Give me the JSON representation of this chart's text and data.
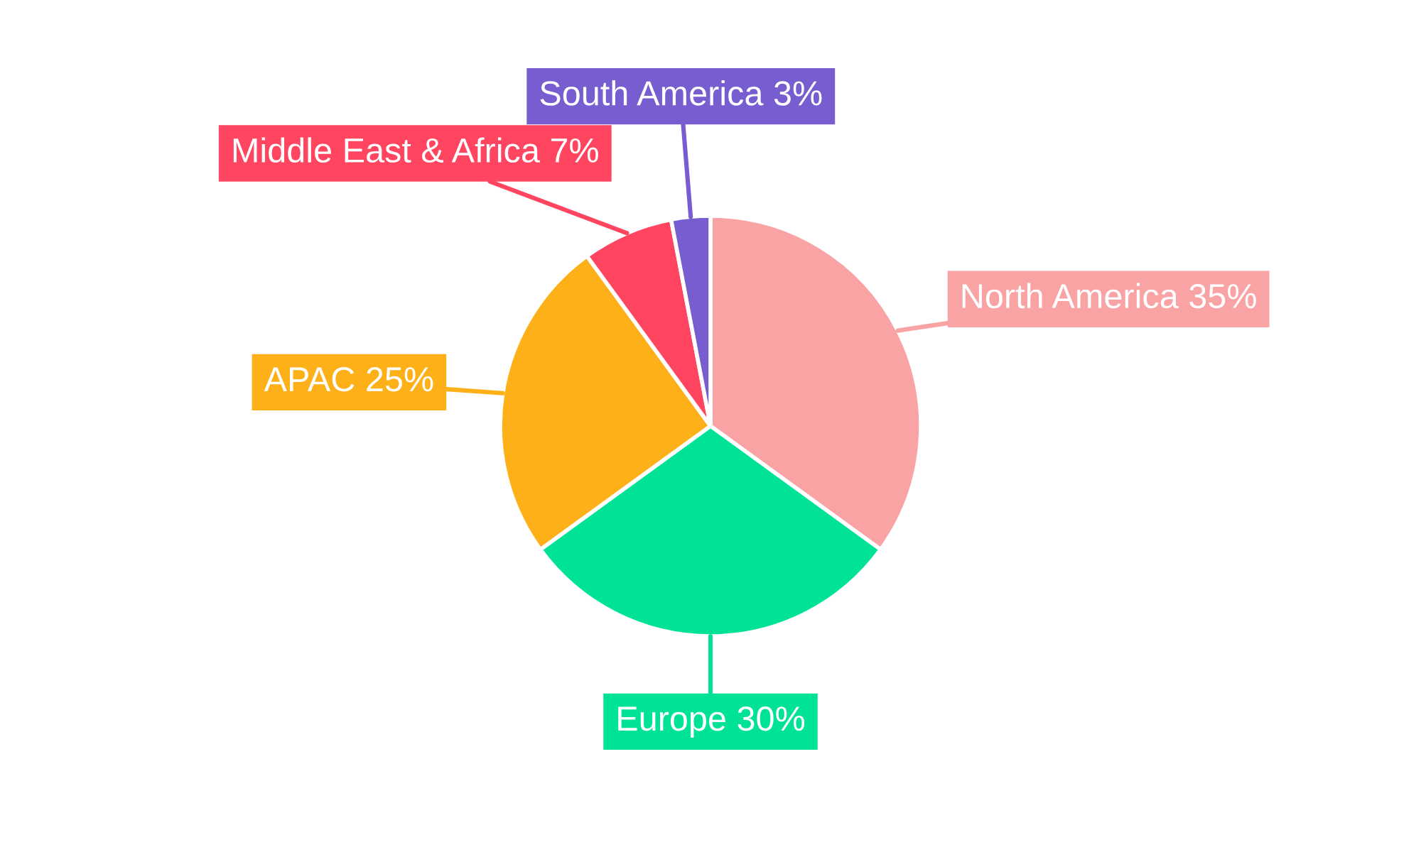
{
  "chart_data": {
    "type": "pie",
    "categories": [
      "North America",
      "Europe",
      "APAC",
      "Middle East & Africa",
      "South America"
    ],
    "values": [
      35,
      30,
      25,
      7,
      3
    ],
    "colors": [
      "#f9a3a5",
      "#00e396",
      "#feb019",
      "#ff4560",
      "#775dd0"
    ],
    "value_labels": [
      "35%",
      "30%",
      "25%",
      "7%",
      "3%"
    ]
  }
}
